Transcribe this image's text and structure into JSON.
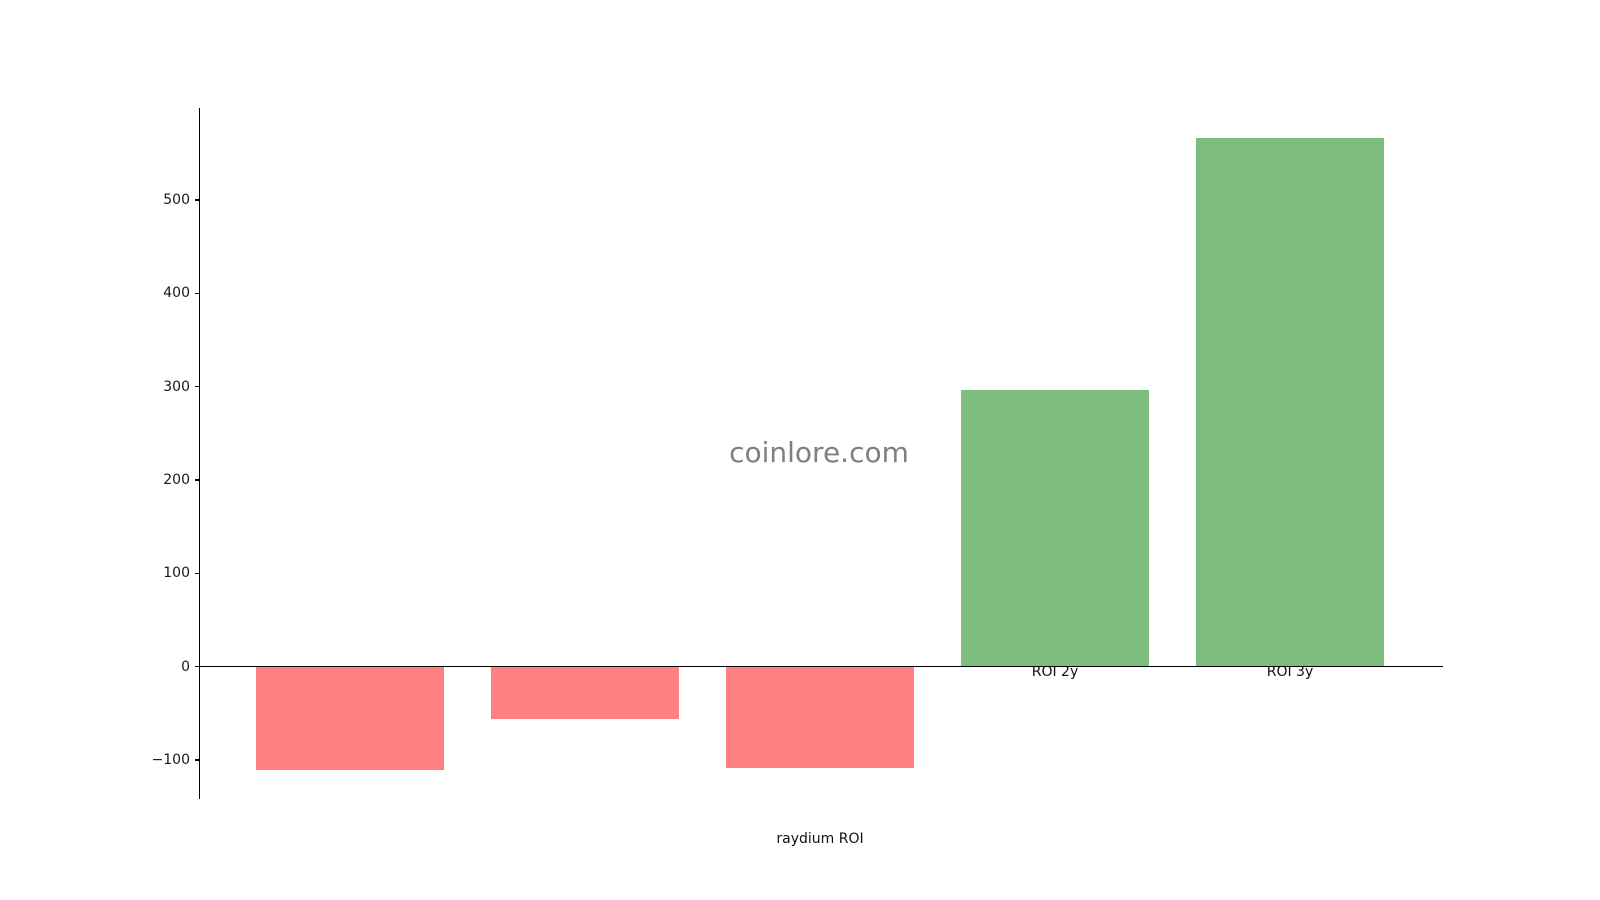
{
  "watermark": {
    "text": "coinlore.com",
    "color": "#808080"
  },
  "chart_data": {
    "type": "bar",
    "title": "",
    "xlabel": "raydium ROI",
    "ylabel": "",
    "categories": [
      "",
      "",
      "",
      "ROI 2y",
      "ROI 3y"
    ],
    "values": [
      -110,
      -55,
      -108,
      296,
      566
    ],
    "bar_colors": [
      "#ff8080",
      "#ff8080",
      "#ff8080",
      "#7dbd7d",
      "#7dbd7d"
    ],
    "negative_color": "#ff8080",
    "positive_color": "#7dbd7d",
    "y_ticks": [
      500,
      400,
      300,
      200,
      100,
      0,
      -100
    ],
    "y_tick_labels": [
      "500",
      "400",
      "300",
      "200",
      "100",
      "0",
      "−100"
    ],
    "ylim": [
      -142,
      599
    ],
    "xlim_note_bars": 5,
    "axis_color": "#000000",
    "tick_label_color": "#1a1a1a",
    "grid": false,
    "legend": null
  }
}
